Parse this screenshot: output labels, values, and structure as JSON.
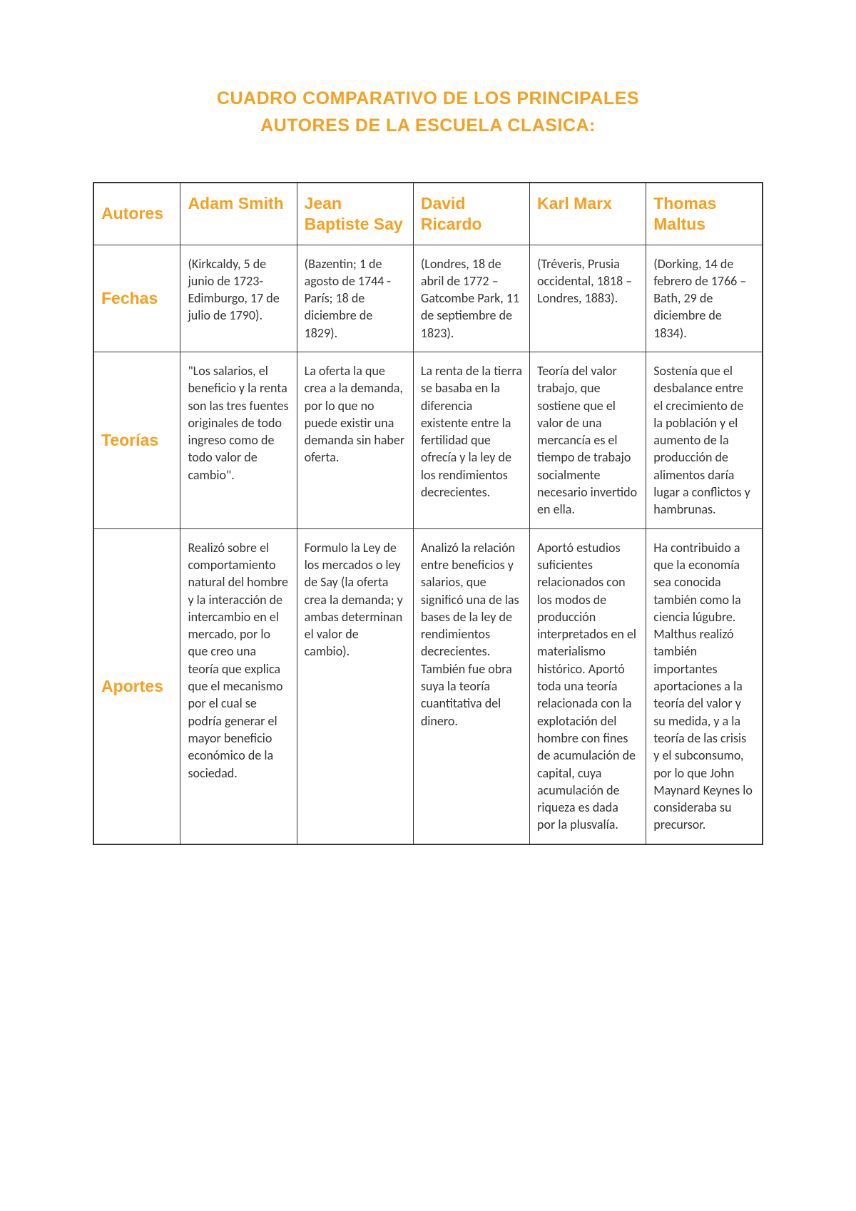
{
  "title_line1": "CUADRO COMPARATIVO DE LOS PRINCIPALES",
  "title_line2": "AUTORES DE LA ESCUELA CLASICA:",
  "colors": {
    "accent": "#f4a020",
    "text": "#333333",
    "border": "#333333",
    "background": "#ffffff"
  },
  "table": {
    "row_labels": {
      "authors": "Autores",
      "dates": "Fechas",
      "theories": "Teorías",
      "contributions": "Aportes"
    },
    "columns": [
      {
        "author": "Adam Smith",
        "dates": "(Kirkcaldy, 5 de junio de 1723- Edimburgo, 17 de julio de 1790).",
        "theory": "\"Los salarios, el beneficio y la renta son las tres fuentes originales de todo ingreso como de todo valor de cambio\".",
        "contribution": "Realizó sobre el comportamiento natural del hombre y la interacción de intercambio en el mercado, por lo que creo una teoría que explica que el mecanismo por el cual se podría generar el mayor beneficio económico de la sociedad."
      },
      {
        "author": "Jean Baptiste Say",
        "dates": "(Bazentin; 1 de agosto de 1744 - París; 18 de diciembre de 1829).",
        "theory": "La oferta la que crea a la demanda, por lo que no puede existir una demanda sin haber oferta.",
        "contribution": "Formulo la Ley de los mercados o ley de Say (la oferta crea la demanda; y ambas determinan el valor de cambio)."
      },
      {
        "author": "David Ricardo",
        "dates": "(Londres, 18 de abril de 1772 – Gatcombe Park, 11 de septiembre de 1823).",
        "theory": "La renta de la tierra se basaba en la diferencia existente entre la fertilidad que ofrecía y la ley de los rendimientos decrecientes.",
        "contribution": "Analizó la relación entre beneficios y salarios, que significó una de las bases de la ley de rendimientos decrecientes. También fue obra suya la teoría cuantitativa del dinero."
      },
      {
        "author": "Karl Marx",
        "dates": "(Tréveris, Prusia occidental, 1818 – Londres, 1883).",
        "theory": "Teoría del valor trabajo, que sostiene que el valor de una mercancía es el tiempo de trabajo socialmente necesario invertido en ella.",
        "contribution": "Aportó estudios suficientes relacionados con los modos de producción interpretados en el materialismo histórico. Aportó toda una teoría relacionada con la explotación del hombre con fines de acumulación de capital, cuya acumulación de riqueza es dada por la plusvalía."
      },
      {
        "author": "Thomas Maltus",
        "dates": "(Dorking, 14 de febrero de 1766 – Bath, 29 de diciembre de 1834).",
        "theory": "Sostenía que el desbalance entre el crecimiento de la población y el aumento de la producción de alimentos daría lugar a conflictos y hambrunas.",
        "contribution": "Ha contribuido a que la economía sea conocida también como la ciencia lúgubre. Malthus realizó también importantes aportaciones a la teoría del valor y su medida, y a la teoría de las crisis y el subconsumo, por lo que John Maynard Keynes lo consideraba su precursor."
      }
    ]
  }
}
